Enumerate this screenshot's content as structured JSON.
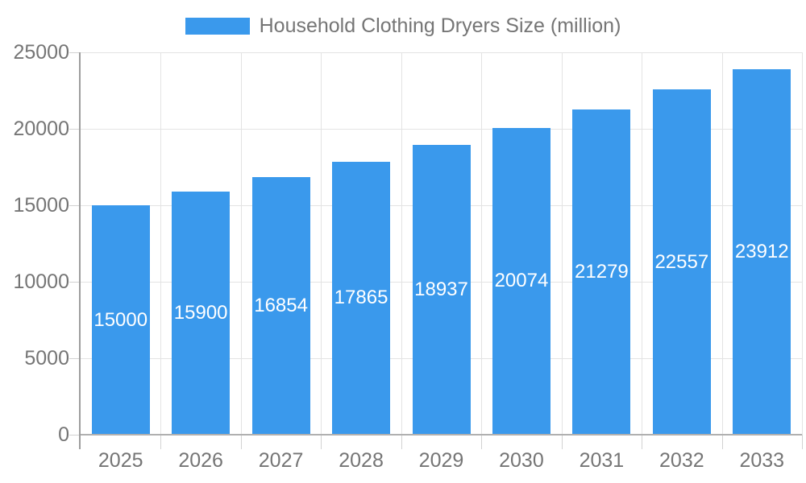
{
  "legend": {
    "label": "Household Clothing Dryers Size (million)"
  },
  "colors": {
    "bar": "#3A99EC",
    "legend_text": "#757575",
    "axis_text": "#757575",
    "value_text": "#FFFFFF",
    "gridline": "#E3E3E3",
    "tick": "#D2D2D2",
    "baseline": "#B0B0B0",
    "y_axis": "#9E9E9E",
    "background": "#FFFFFF"
  },
  "chart_data": {
    "type": "bar",
    "title": "",
    "legend_entries": [
      "Household Clothing Dryers Size (million)"
    ],
    "legend_position": "top-center",
    "categories": [
      "2025",
      "2026",
      "2027",
      "2028",
      "2029",
      "2030",
      "2031",
      "2032",
      "2033"
    ],
    "series": [
      {
        "name": "Household Clothing Dryers Size (million)",
        "values": [
          15000,
          15900,
          16854,
          17865,
          18937,
          20074,
          21279,
          22557,
          23912
        ]
      }
    ],
    "bar_labels": [
      15000,
      15900,
      16854,
      17865,
      18937,
      20074,
      21279,
      22557,
      23912
    ],
    "bar_label_position": "inside-center",
    "xlabel": "",
    "ylabel": "",
    "ylim": [
      0,
      25000
    ],
    "yticks": [
      0,
      5000,
      10000,
      15000,
      20000,
      25000
    ],
    "grid": true
  }
}
